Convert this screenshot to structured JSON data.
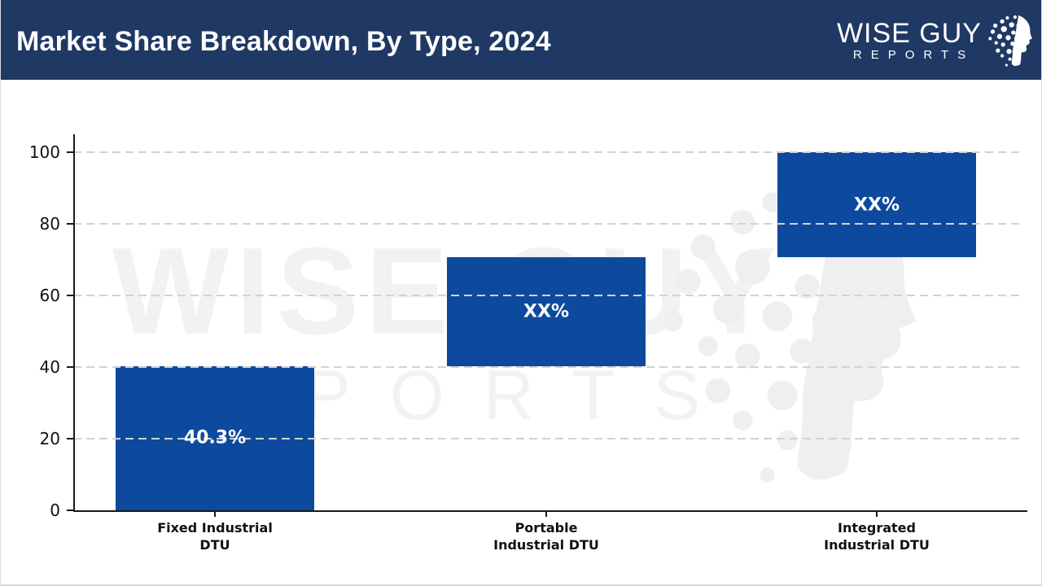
{
  "header": {
    "title": "Market Share Breakdown, By Type, 2024",
    "logo_line1": "WISE GUY",
    "logo_line2": "REPORTS"
  },
  "watermark": {
    "line1": "WISE GUY",
    "line2": "REPORTS"
  },
  "colors": {
    "header_bg": "#1F3864",
    "bar_color": "#0D4A9D",
    "bar_label_color": "#FFFFFF",
    "axis_color": "#1A1A1A",
    "grid_color": "#D2D2D2",
    "watermark_color": "#F2F2F2"
  },
  "chart_data": {
    "type": "bar",
    "variant": "floating_stacked_percentage",
    "title": "Market Share Breakdown, By Type, 2024",
    "categories": [
      "Fixed Industrial DTU",
      "Portable Industrial DTU",
      "Integrated Industrial DTU"
    ],
    "category_label_lines": [
      [
        "Fixed Industrial",
        "DTU"
      ],
      [
        "Portable",
        "Industrial DTU"
      ],
      [
        "Integrated",
        "Industrial DTU"
      ]
    ],
    "bars": [
      {
        "start": 0,
        "end": 40.3,
        "value": 40.3,
        "label": "40.3%"
      },
      {
        "start": 40.3,
        "end": 70.6,
        "value": 30.3,
        "label": "XX%"
      },
      {
        "start": 70.6,
        "end": 100,
        "value": 29.4,
        "label": "XX%"
      }
    ],
    "yticks": [
      0,
      20,
      40,
      60,
      80,
      100
    ],
    "ylim": [
      0,
      105
    ],
    "xlabel": "",
    "ylabel": "",
    "grid": "horizontal_dashed",
    "legend": "none",
    "bar_color": "#0D4A9D",
    "bar_label_color": "#FFFFFF"
  }
}
